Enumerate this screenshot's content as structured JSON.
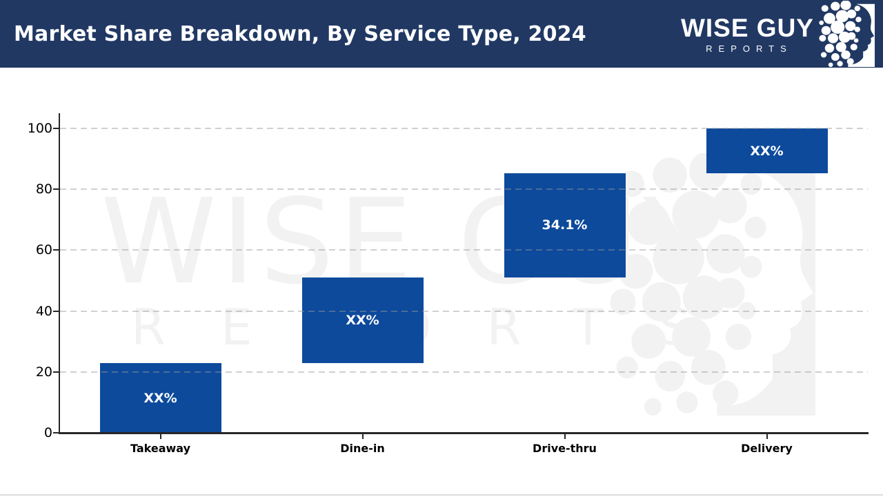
{
  "header": {
    "title": "Market Share Breakdown, By Service Type, 2024",
    "logo": {
      "brand_top": "WISE GUY",
      "brand_bottom": "REPORTS"
    }
  },
  "watermark": {
    "line1": "WISE GUY",
    "line2": "REPORTS"
  },
  "chart_data": {
    "type": "bar",
    "subtype": "floating-waterfall",
    "title": "Market Share Breakdown, By Service Type, 2024",
    "categories": [
      "Takeaway",
      "Dine-in",
      "Drive-thru",
      "Delivery"
    ],
    "segments": [
      {
        "category": "Takeaway",
        "start": 0,
        "end": 22.8,
        "label": "XX%"
      },
      {
        "category": "Dine-in",
        "start": 22.8,
        "end": 51.1,
        "label": "XX%"
      },
      {
        "category": "Drive-thru",
        "start": 51.1,
        "end": 85.2,
        "label": "34.1%"
      },
      {
        "category": "Delivery",
        "start": 85.2,
        "end": 100,
        "label": "XX%"
      }
    ],
    "yticks": [
      0,
      20,
      40,
      60,
      80,
      100
    ],
    "ylim": [
      0,
      105
    ],
    "xlabel": "",
    "ylabel": "",
    "legend": "none",
    "grid": "dashed-horizontal",
    "bar_color": "#0d4a9c",
    "bar_label_color": "#ffffff"
  },
  "colors": {
    "header_bg": "#213863",
    "bar": "#0d4a9c",
    "grid": "#d9d9d9",
    "watermark": "#f2f2f2",
    "axis": "#262626"
  }
}
